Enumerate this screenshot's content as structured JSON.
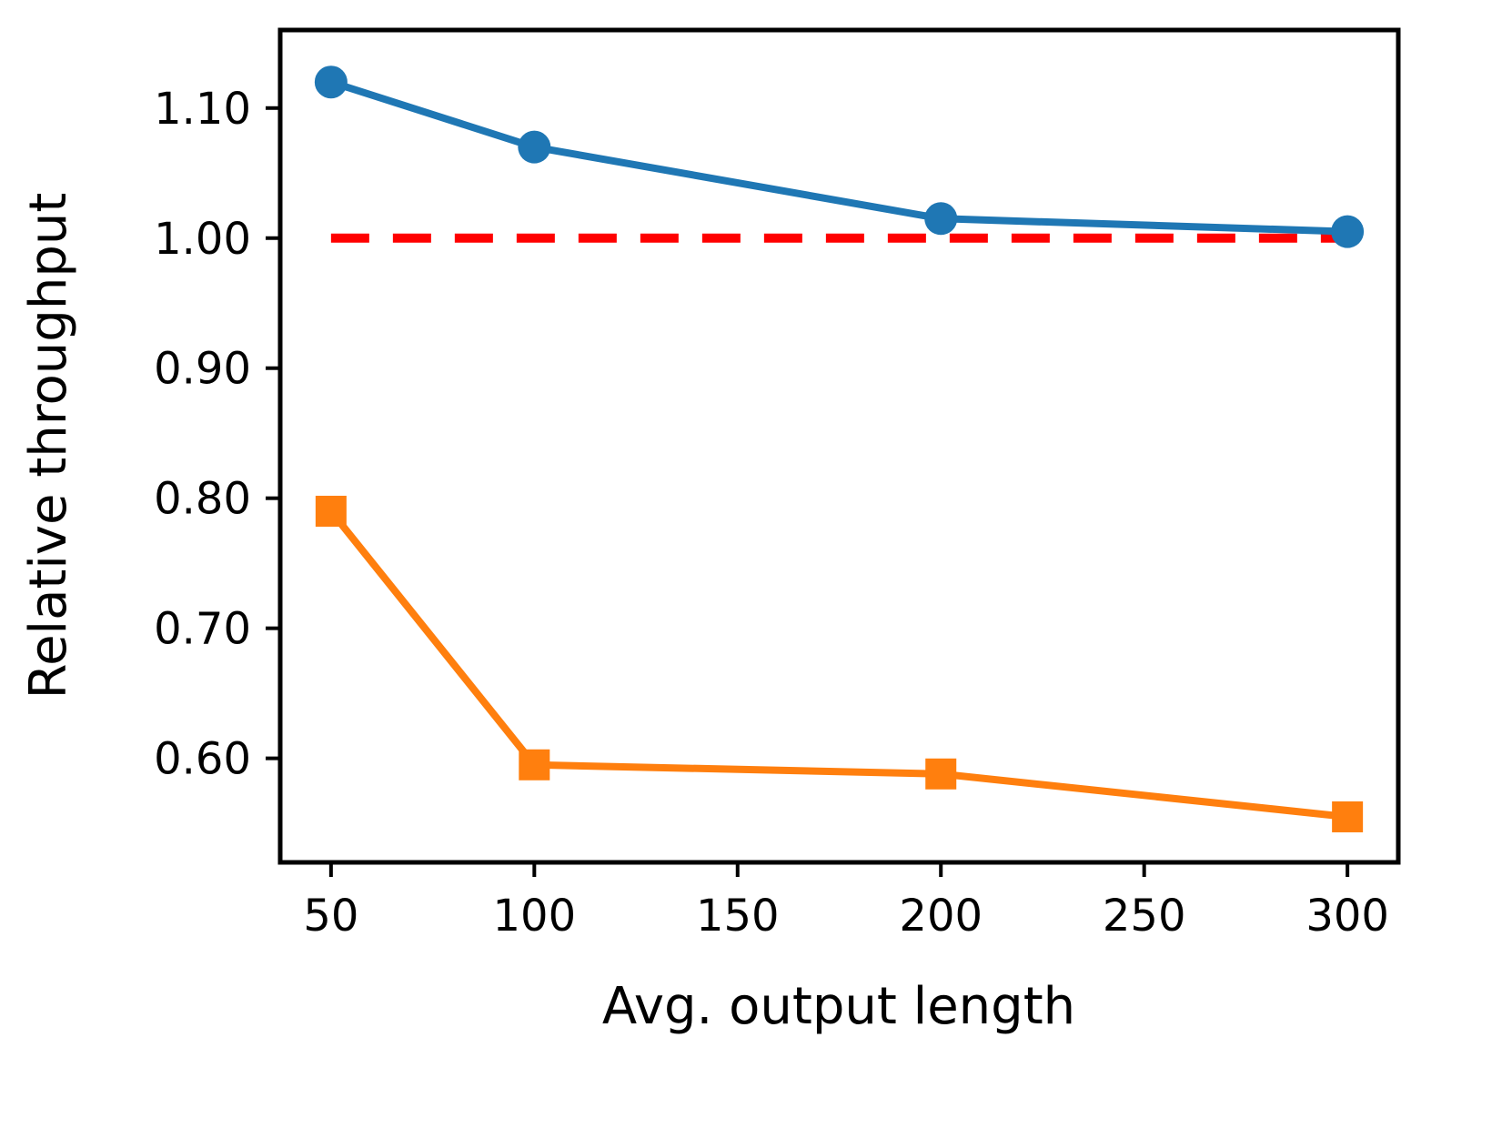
{
  "chart_data": {
    "type": "line",
    "title": "",
    "xlabel": "Avg. output length",
    "ylabel": "Relative throughput",
    "xlim": [
      37.5,
      312.5
    ],
    "ylim": [
      0.52,
      1.16
    ],
    "xticks": [
      50,
      100,
      150,
      200,
      250,
      300
    ],
    "xtick_labels": [
      "50",
      "100",
      "150",
      "200",
      "250",
      "300"
    ],
    "yticks": [
      0.6,
      0.7,
      0.8,
      0.9,
      1.0,
      1.1
    ],
    "ytick_labels": [
      "0.60",
      "0.70",
      "0.80",
      "0.90",
      "1.00",
      "1.10"
    ],
    "grid": false,
    "legend": null,
    "x": [
      50,
      100,
      200,
      300
    ],
    "series": [
      {
        "name": "blue-series",
        "color": "#1f77b4",
        "marker": "circle",
        "values": [
          1.12,
          1.07,
          1.015,
          1.005
        ]
      },
      {
        "name": "orange-series",
        "color": "#ff7f0e",
        "marker": "square",
        "values": [
          0.79,
          0.595,
          0.588,
          0.555
        ]
      }
    ],
    "reference_line": {
      "y": 1.0,
      "color": "#ff0000",
      "style": "dashed",
      "x_start": 50,
      "x_end": 300
    },
    "colors": {
      "axes": "#000000",
      "background": "#ffffff"
    }
  }
}
